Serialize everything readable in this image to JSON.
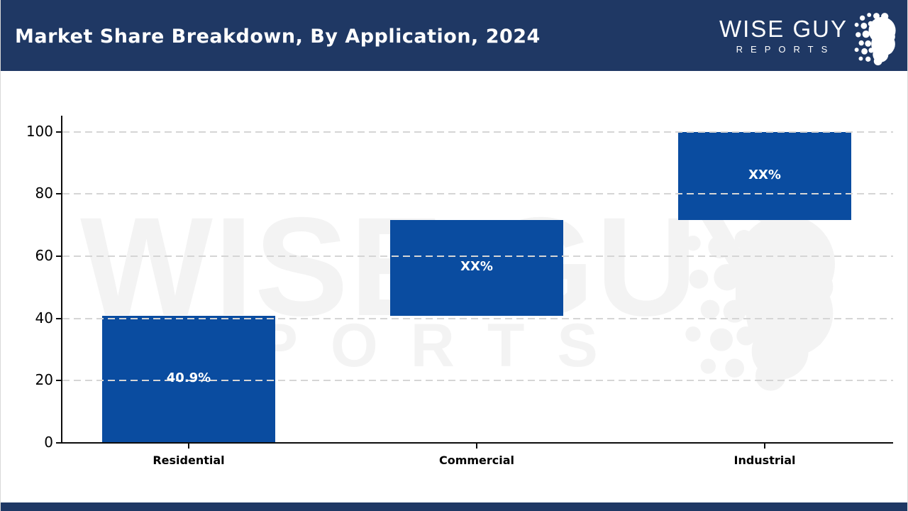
{
  "header": {
    "title": "Market Share Breakdown, By Application, 2024",
    "logo": {
      "line1": "WISE GUY",
      "line2": "REPORTS"
    }
  },
  "watermark": {
    "line1": "WISE GUY",
    "line2": "REPORTS"
  },
  "chart_data": {
    "type": "bar",
    "subtype": "waterfall-stacked",
    "title": "Market Share Breakdown, By Application, 2024",
    "xlabel": "",
    "ylabel": "",
    "categories": [
      "Residential",
      "Commercial",
      "Industrial"
    ],
    "segments": [
      {
        "category": "Residential",
        "start": 0,
        "end": 40.9,
        "value": 40.9,
        "label": "40.9%"
      },
      {
        "category": "Commercial",
        "start": 40.9,
        "end": 71.6,
        "value": 30.7,
        "label": "XX%"
      },
      {
        "category": "Industrial",
        "start": 71.6,
        "end": 100,
        "value": 28.4,
        "label": "XX%"
      }
    ],
    "yticks": [
      0,
      20,
      40,
      60,
      80,
      100
    ],
    "ylim": [
      0,
      105
    ],
    "grid": "horizontal dashed, drawn above bars",
    "legend": "none",
    "bar_color": "#0a4ca0"
  },
  "colors": {
    "header_bg": "#1f3864",
    "bar": "#0a4ca0",
    "gridline": "#d5d5d5",
    "axis": "#0d0d0d",
    "watermark": "#f3f3f3",
    "label_on_bar": "#ffffff"
  }
}
